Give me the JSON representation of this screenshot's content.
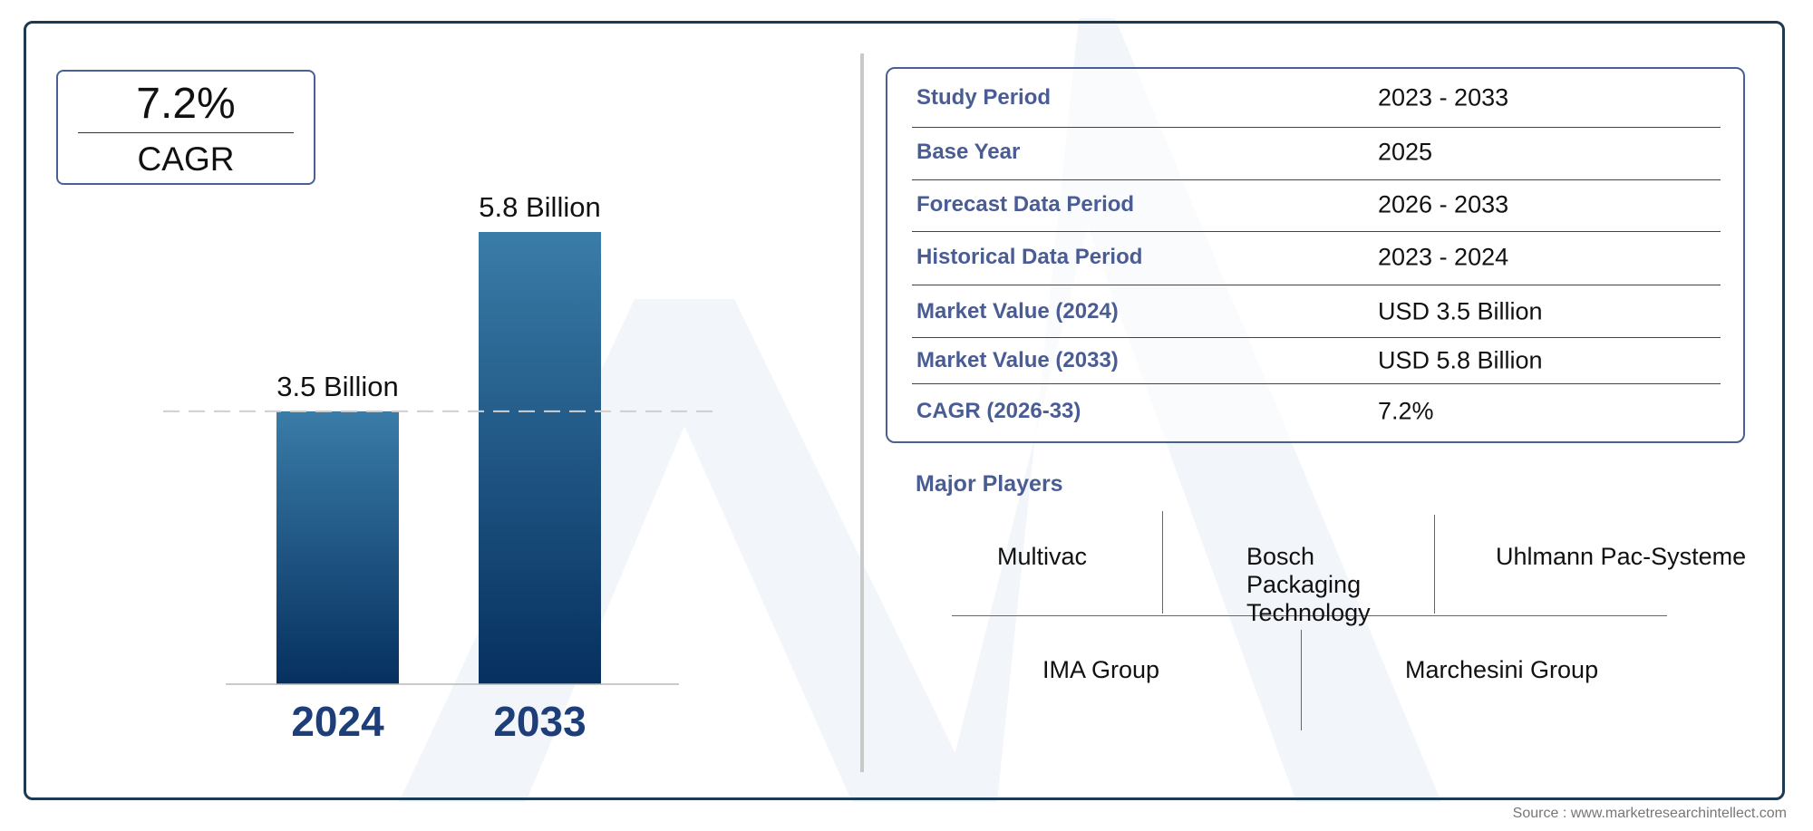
{
  "cagr_box": {
    "value": "7.2%",
    "label": "CAGR"
  },
  "chart_data": {
    "type": "bar",
    "categories": [
      "2024",
      "2033"
    ],
    "values": [
      3.5,
      5.8
    ],
    "data_labels": [
      "3.5 Billion",
      "5.8 Billion"
    ],
    "title": "",
    "xlabel": "",
    "ylabel": "",
    "ylim": [
      0,
      5.8
    ],
    "grid": false,
    "reference_line": {
      "value": 3.5,
      "style": "dashed"
    },
    "colors": {
      "bar_top": "#3a7ca8",
      "bar_bottom": "#06305f",
      "year_label": "#1d3e78"
    }
  },
  "summary_table": {
    "rows": [
      {
        "label": "Study Period",
        "value": "2023 - 2033"
      },
      {
        "label": "Base Year",
        "value": "2025"
      },
      {
        "label": "Forecast Data Period",
        "value": "2026 - 2033"
      },
      {
        "label": "Historical Data Period",
        "value": "2023 - 2024"
      },
      {
        "label": "Market Value (2024)",
        "value": "USD 3.5 Billion"
      },
      {
        "label": "Market Value (2033)",
        "value": "USD 5.8 Billion"
      },
      {
        "label": "CAGR (2026-33)",
        "value": "7.2%"
      }
    ]
  },
  "major_players": {
    "title": "Major Players",
    "players": [
      "Multivac",
      "Bosch Packaging Technology",
      "Uhlmann Pac-Systeme",
      "IMA Group",
      "Marchesini Group"
    ]
  },
  "source": "Source : www.marketresearchintellect.com"
}
